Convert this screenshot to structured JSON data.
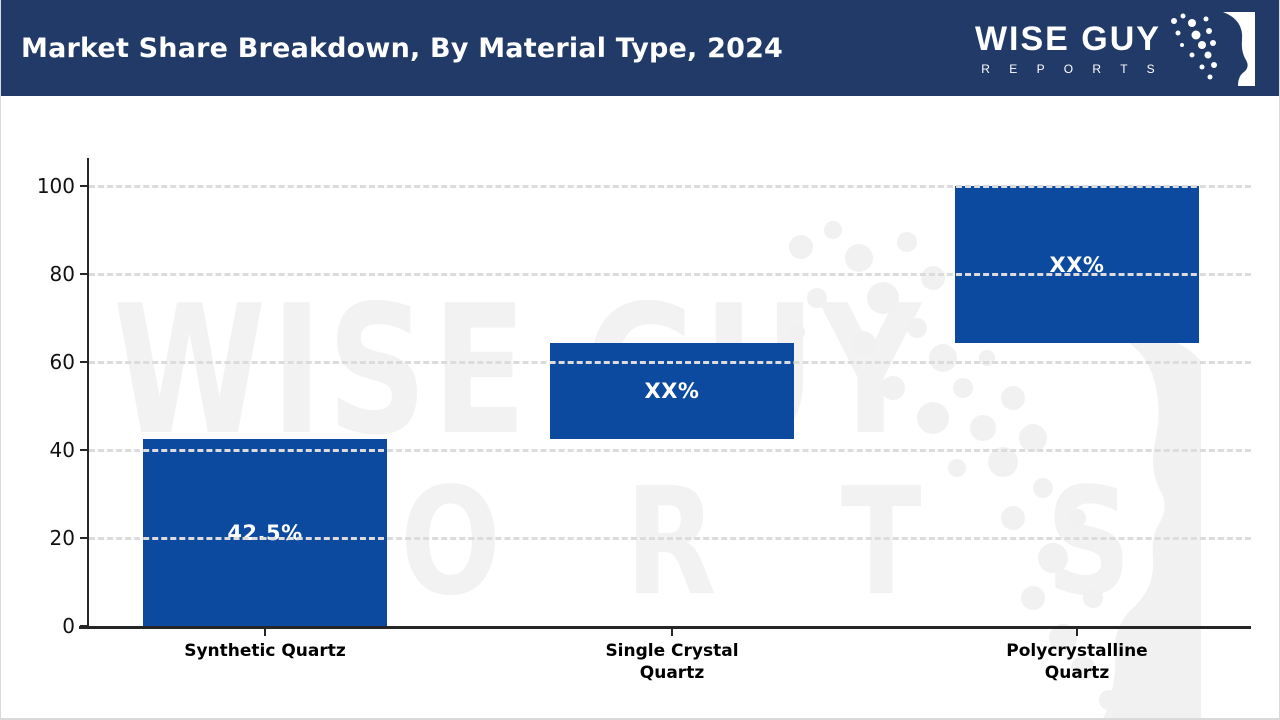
{
  "header": {
    "title": "Market Share Breakdown, By Material Type, 2024",
    "background_color": "#223a68",
    "logo": {
      "line1": "WISE GUY",
      "line2": "R E P O R T S"
    }
  },
  "watermark": {
    "line1": "WISE GUY",
    "line2": "P O R T S"
  },
  "chart_data": {
    "type": "bar",
    "variant": "waterfall",
    "title": "Market Share Breakdown, By Material Type, 2024",
    "categories": [
      "Synthetic Quartz",
      "Single Crystal Quartz",
      "Polycrystalline Quartz"
    ],
    "category_label_lines": [
      [
        "Synthetic Quartz"
      ],
      [
        "Single Crystal",
        "Quartz"
      ],
      [
        "Polycrystalline",
        "Quartz"
      ]
    ],
    "segments": [
      {
        "category": "Synthetic Quartz",
        "start": 0,
        "end": 42.5,
        "label": "42.5%"
      },
      {
        "category": "Single Crystal Quartz",
        "start": 42.5,
        "end": 64.3,
        "label": "XX%"
      },
      {
        "category": "Polycrystalline Quartz",
        "start": 64.3,
        "end": 100,
        "label": "XX%"
      }
    ],
    "y_ticks": [
      0,
      20,
      40,
      60,
      80,
      100
    ],
    "ylim": [
      0,
      106
    ],
    "xlabel": "",
    "ylabel": "",
    "legend": "none",
    "grid": "horizontal-dashed-above-bars",
    "bar_color": "#0b4a9f",
    "bar_label_color": "#ffffff",
    "grid_color": "#dcdcdc",
    "axis_color": "#262626",
    "tick_label_color": "#111111"
  }
}
